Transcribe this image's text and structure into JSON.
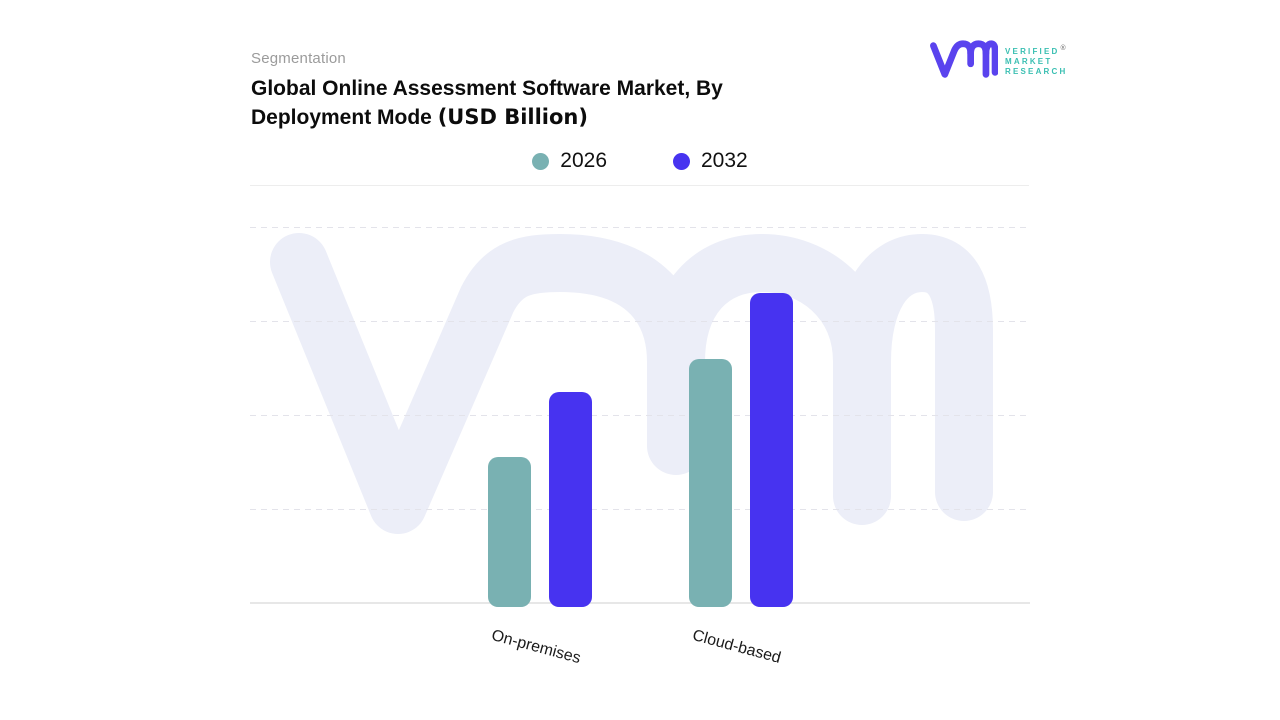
{
  "header": {
    "eyebrow": "Segmentation",
    "title_line1": "Global Online Assessment Software Market, By",
    "title_line2": "Deployment Mode ",
    "title_units": "(USD Billion)"
  },
  "logo": {
    "text_lines": [
      "VERIFIED",
      "MARKET",
      "RESEARCH"
    ],
    "registered_symbol": "®",
    "monogram_color": "#5A43EE",
    "text_color": "#3ABFB2"
  },
  "chart_data": {
    "type": "bar",
    "title": "Global Online Assessment Software Market, By Deployment Mode (USD Billion)",
    "categories": [
      "On-premises",
      "Cloud-based"
    ],
    "series": [
      {
        "name": "2026",
        "color": "#79B1B2",
        "values": [
          1.55,
          2.6
        ]
      },
      {
        "name": "2032",
        "color": "#4733F0",
        "values": [
          2.25,
          3.3
        ]
      }
    ],
    "xlabel": "",
    "ylabel": "",
    "y_axis_tick_labels_visible": false,
    "ylim": [
      0,
      4
    ],
    "grid": "dashed-horizontal",
    "legend_position": "top-center",
    "value_note": "Y axis is unlabeled in the source image; values are estimated in gridline units (1 unit = one gridline spacing)"
  },
  "colors": {
    "background": "#FFFFFF",
    "watermark": "#ECEEF8",
    "gridline": "#E3E3EA",
    "axis_line": "#E7E7E7",
    "divider": "#EDEDED",
    "eyebrow_text": "#9B9B9B",
    "title_text": "#0C0C0C"
  }
}
